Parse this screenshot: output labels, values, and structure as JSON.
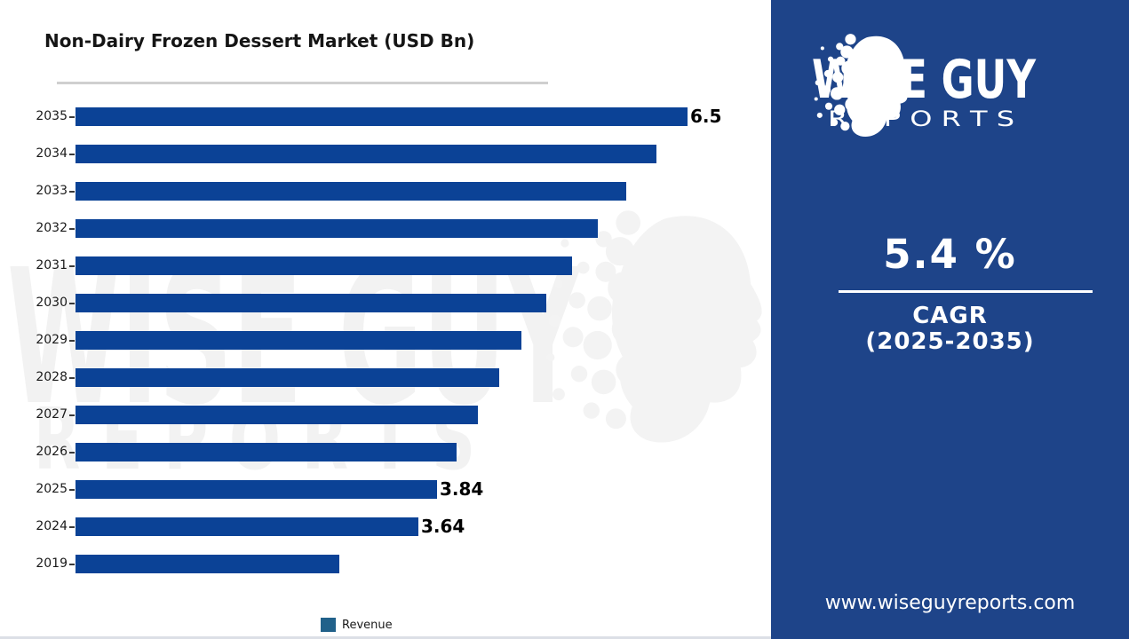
{
  "title": "Non-Dairy Frozen Dessert Market (USD Bn)",
  "chart_data": {
    "type": "bar",
    "orientation": "horizontal",
    "title": "Non-Dairy Frozen Dessert Market (USD Bn)",
    "categories": [
      "2035",
      "2034",
      "2033",
      "2032",
      "2031",
      "2030",
      "2029",
      "2028",
      "2027",
      "2026",
      "2025",
      "2024",
      "2019"
    ],
    "series": [
      {
        "name": "Revenue",
        "values": [
          6.5,
          6.17,
          5.85,
          5.55,
          5.27,
          5.0,
          4.74,
          4.5,
          4.27,
          4.05,
          3.84,
          3.64,
          2.8
        ]
      }
    ],
    "visible_value_labels": [
      "6.5",
      "",
      "",
      "",
      "",
      "",
      "",
      "",
      "",
      "",
      "3.84",
      "3.64",
      ""
    ],
    "xlim": [
      0,
      6.9
    ],
    "grid": false,
    "legend_position": "bottom",
    "bar_color": "#0b4296",
    "legend_swatch_color": "#21618a"
  },
  "legend": {
    "label": "Revenue"
  },
  "watermark": {
    "line1": "WISE GUY",
    "line2": "R E P O R T S"
  },
  "brand_panel": {
    "bg_color": "#1e4489",
    "logo_line1": "WISE GUY",
    "logo_line2": "R E P O R T S",
    "cagr_value": "5.4 %",
    "cagr_title": "CAGR",
    "cagr_range": "(2025-2035)",
    "website": "www.wiseguyreports.com"
  }
}
